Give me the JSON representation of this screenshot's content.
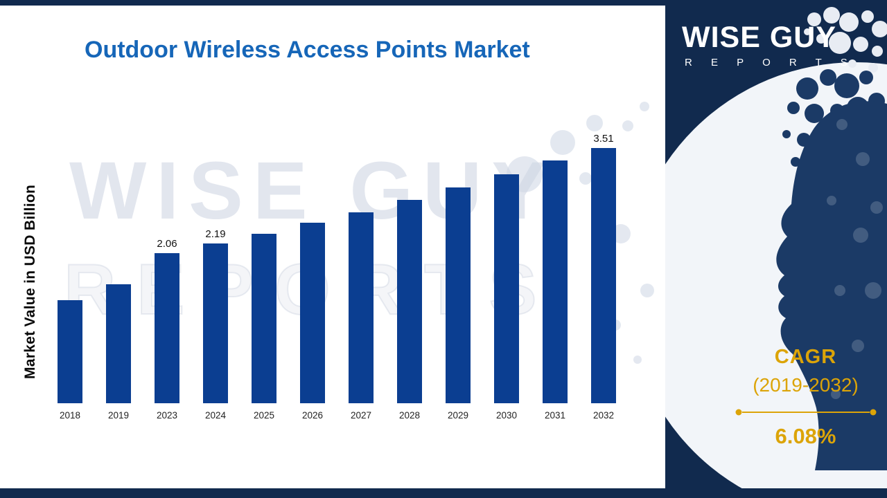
{
  "header": {
    "title": "Outdoor Wireless Access Points Market"
  },
  "watermark": {
    "line1": "WISE GUY",
    "line2": "REPORTS"
  },
  "brand": {
    "name": "WISE GUY",
    "sub": "R E P O R T S"
  },
  "cagr": {
    "label": "CAGR",
    "range": "(2019-2032)",
    "value": "6.08%"
  },
  "colors": {
    "panel_navy": "#112a4e",
    "title_blue": "#1666b8",
    "gold": "#dca408",
    "bar_blue": "#0b3e91"
  },
  "chart_data": {
    "type": "bar",
    "title": "Outdoor Wireless Access Points Market",
    "xlabel": "",
    "ylabel": "Market Value in USD Billion",
    "categories": [
      "2018",
      "2019",
      "2023",
      "2024",
      "2025",
      "2026",
      "2027",
      "2028",
      "2029",
      "2030",
      "2031",
      "2032"
    ],
    "values": [
      1.42,
      1.63,
      2.06,
      2.19,
      2.33,
      2.48,
      2.62,
      2.79,
      2.96,
      3.14,
      3.33,
      3.51
    ],
    "data_labels": {
      "2023": "2.06",
      "2024": "2.19",
      "2032": "3.51"
    },
    "ylim": [
      0,
      3.8
    ],
    "grid": false,
    "legend": "none",
    "bar_color": "#0b3e91"
  }
}
